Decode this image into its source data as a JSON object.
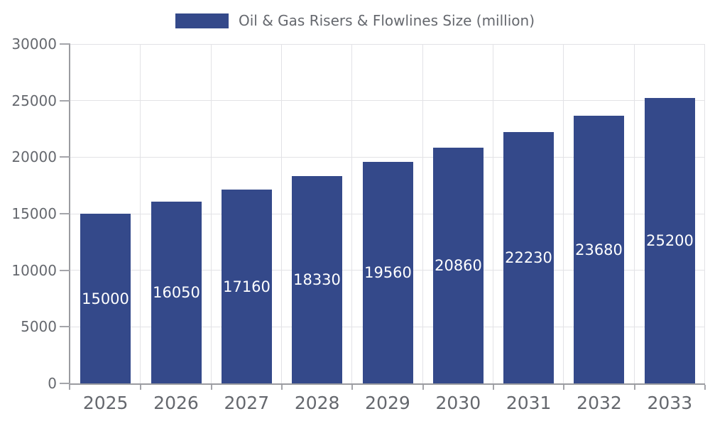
{
  "legend": {
    "label": "Oil & Gas Risers & Flowlines Size (million)"
  },
  "chart_data": {
    "type": "bar",
    "title": "Oil & Gas Risers & Flowlines Size (million)",
    "categories": [
      "2025",
      "2026",
      "2027",
      "2028",
      "2029",
      "2030",
      "2031",
      "2032",
      "2033"
    ],
    "values": [
      15000,
      16050,
      17160,
      18330,
      19560,
      20860,
      22230,
      23680,
      25200
    ],
    "xlabel": "",
    "ylabel": "",
    "ylim": [
      0,
      30000
    ],
    "yticks": [
      0,
      5000,
      10000,
      15000,
      20000,
      25000,
      30000
    ],
    "grid": true,
    "legend_position": "top-center",
    "bar_labels_inside": true,
    "colors": {
      "bar": "#34498a",
      "bar_label": "#ffffff",
      "grid": "#e2e2e6",
      "axis": "#9a9ba0",
      "tick": "#a4a5aa",
      "text": "#65686e"
    }
  }
}
